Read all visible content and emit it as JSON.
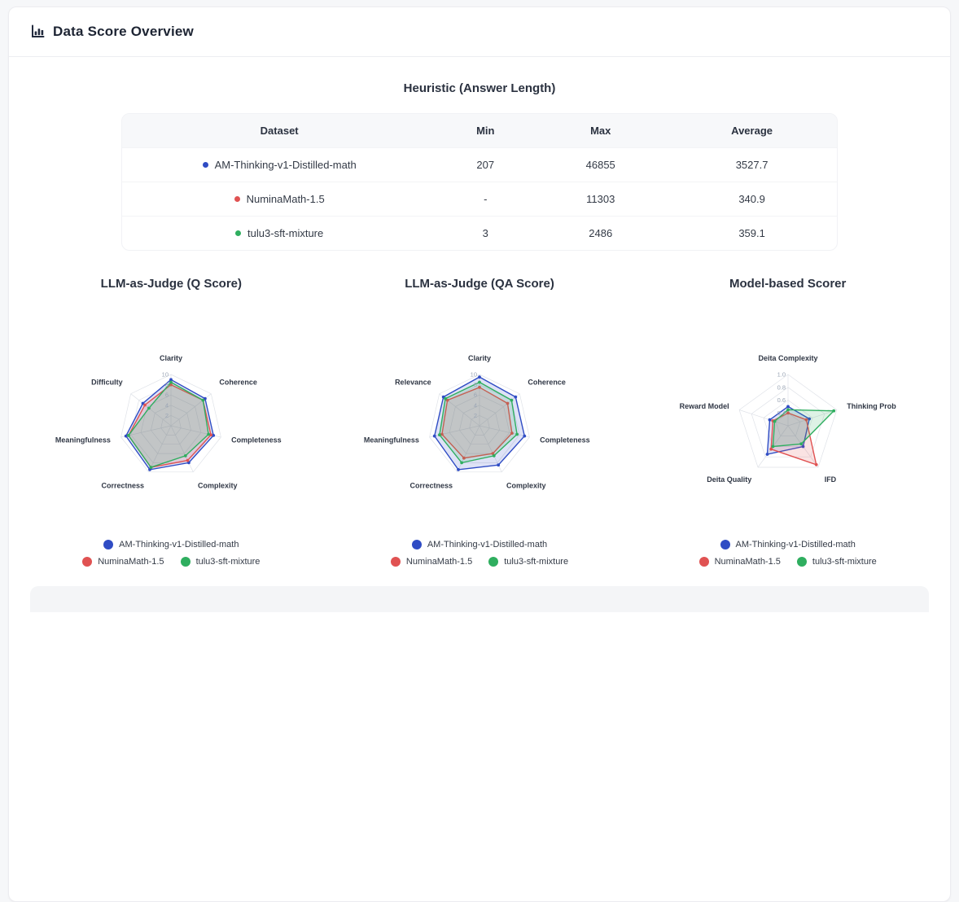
{
  "card": {
    "title": "Data Score Overview"
  },
  "heuristic": {
    "title": "Heuristic (Answer Length)",
    "columns": [
      "Dataset",
      "Min",
      "Max",
      "Average"
    ],
    "rows": [
      {
        "dataset": "AM-Thinking-v1-Distilled-math",
        "color": "#2f4cc4",
        "min": "207",
        "max": "46855",
        "average": "3527.7"
      },
      {
        "dataset": "NuminaMath-1.5",
        "color": "#e05252",
        "min": "-",
        "max": "11303",
        "average": "340.9"
      },
      {
        "dataset": "tulu3-sft-mixture",
        "color": "#2fae5f",
        "min": "3",
        "max": "2486",
        "average": "359.1"
      }
    ]
  },
  "legend": {
    "items": [
      {
        "label": "AM-Thinking-v1-Distilled-math",
        "color": "#2f4cc4"
      },
      {
        "label": "NuminaMath-1.5",
        "color": "#e05252"
      },
      {
        "label": "tulu3-sft-mixture",
        "color": "#2fae5f"
      }
    ]
  },
  "chart_data": [
    {
      "type": "radar",
      "title": "LLM-as-Judge (Q Score)",
      "axes": [
        "Clarity",
        "Coherence",
        "Completeness",
        "Complexity",
        "Correctness",
        "Meaningfulness",
        "Difficulty"
      ],
      "min": 0,
      "max": 10,
      "ticks": [
        2,
        4,
        6,
        8,
        10
      ],
      "tick_labels": [
        "2",
        "4",
        "6",
        "8",
        "10"
      ],
      "series": [
        {
          "name": "AM-Thinking-v1-Distilled-math",
          "color": "#2f4cc4",
          "values": [
            9,
            8.5,
            8.5,
            8,
            9.5,
            9,
            7
          ]
        },
        {
          "name": "NuminaMath-1.5",
          "color": "#e05252",
          "values": [
            8,
            8,
            8,
            7.5,
            9,
            8.5,
            6.5
          ]
        },
        {
          "name": "tulu3-sft-mixture",
          "color": "#2fae5f",
          "values": [
            8.5,
            8,
            7.5,
            6.5,
            9,
            8.5,
            5.5
          ]
        }
      ]
    },
    {
      "type": "radar",
      "title": "LLM-as-Judge (QA Score)",
      "axes": [
        "Clarity",
        "Coherence",
        "Completeness",
        "Complexity",
        "Correctness",
        "Meaningfulness",
        "Relevance"
      ],
      "min": 0,
      "max": 10,
      "ticks": [
        2,
        4,
        6,
        8,
        10
      ],
      "tick_labels": [
        "2",
        "4",
        "6",
        "8",
        "10"
      ],
      "series": [
        {
          "name": "AM-Thinking-v1-Distilled-math",
          "color": "#2f4cc4",
          "values": [
            9.5,
            9,
            9,
            8.5,
            9.5,
            9,
            9
          ]
        },
        {
          "name": "NuminaMath-1.5",
          "color": "#e05252",
          "values": [
            7.5,
            7,
            6.5,
            6,
            7,
            7.5,
            8
          ]
        },
        {
          "name": "tulu3-sft-mixture",
          "color": "#2fae5f",
          "values": [
            8.5,
            8,
            7.5,
            6.5,
            8,
            8,
            8.5
          ]
        }
      ]
    },
    {
      "type": "radar",
      "title": "Model-based Scorer",
      "axes": [
        "Deita Complexity",
        "Thinking Prob",
        "IFD",
        "Deita Quality",
        "Reward Model"
      ],
      "min": 0.2,
      "max": 1.0,
      "ticks": [
        0.4,
        0.6,
        0.8,
        1.0
      ],
      "tick_labels": [
        "0.4",
        "0.6",
        "0.8",
        "1.0"
      ],
      "series": [
        {
          "name": "AM-Thinking-v1-Distilled-math",
          "color": "#2f4cc4",
          "values": [
            0.5,
            0.55,
            0.6,
            0.75,
            0.5
          ]
        },
        {
          "name": "NuminaMath-1.5",
          "color": "#e05252",
          "values": [
            0.4,
            0.5,
            0.95,
            0.65,
            0.45
          ]
        },
        {
          "name": "tulu3-sft-mixture",
          "color": "#2fae5f",
          "values": [
            0.45,
            0.95,
            0.55,
            0.6,
            0.42
          ]
        }
      ]
    }
  ]
}
